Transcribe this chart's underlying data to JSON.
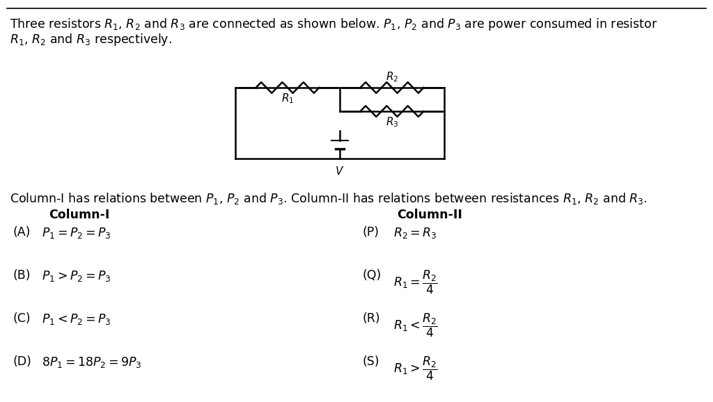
{
  "bg_color": "#ffffff",
  "text_color": "#000000",
  "title_line1": "Three resistors $R_1$, $R_2$ and $R_3$ are connected as shown below. $P_1$, $P_2$ and $P_3$ are power consumed in resistor",
  "title_line2": "$R_1$, $R_2$ and $R_3$ respectively.",
  "mid_text": "Column-I has relations between $P_1$, $P_2$ and $P_3$. Column-II has relations between resistances $R_1$, $R_2$ and $R_3$.",
  "col1_header": "Column-I",
  "col2_header": "Column-II",
  "col1_labels": [
    "(A)",
    "(B)",
    "(C)",
    "(D)"
  ],
  "col1_exprs": [
    "$P_1 = P_2 = P_3$",
    "$P_1 > P_2 = P_3$",
    "$P_1 < P_2 = P_3$",
    "$8P_1 = 18P_2 = 9P_3$"
  ],
  "col2_labels": [
    "(P)",
    "(Q)",
    "(R)",
    "(S)"
  ],
  "col2_exprs": [
    "$R_2 = R_3$",
    "$R_1 = \\dfrac{R_2}{4}$",
    "$R_1 < \\dfrac{R_2}{4}$",
    "$R_1 > \\dfrac{R_2}{4}$"
  ],
  "font_size": 12.5,
  "font_size_bold": 12.5,
  "resistor_color": "#000000",
  "wire_color": "#000000",
  "border_color": "#000000"
}
